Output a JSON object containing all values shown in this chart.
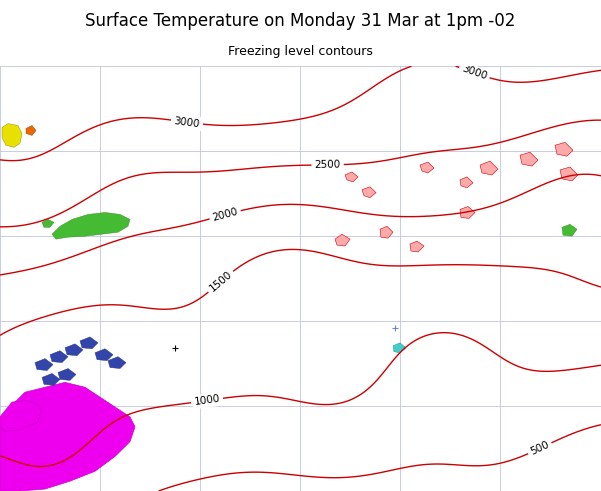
{
  "title": "Surface Temperature on Monday 31 Mar at 1pm -02",
  "subtitle": "Freezing level contours",
  "title_fontsize": 12,
  "subtitle_fontsize": 9,
  "bg_ocean": "#d8daf0",
  "contour_color": "#cc0000",
  "contour_levels": [
    500,
    1000,
    1500,
    2000,
    2500,
    3000
  ],
  "grid_color": "#c0c4de",
  "figsize": [
    6.01,
    4.91
  ],
  "dpi": 100,
  "title_bg": "#ffffff",
  "map_border": "#aaaaaa"
}
